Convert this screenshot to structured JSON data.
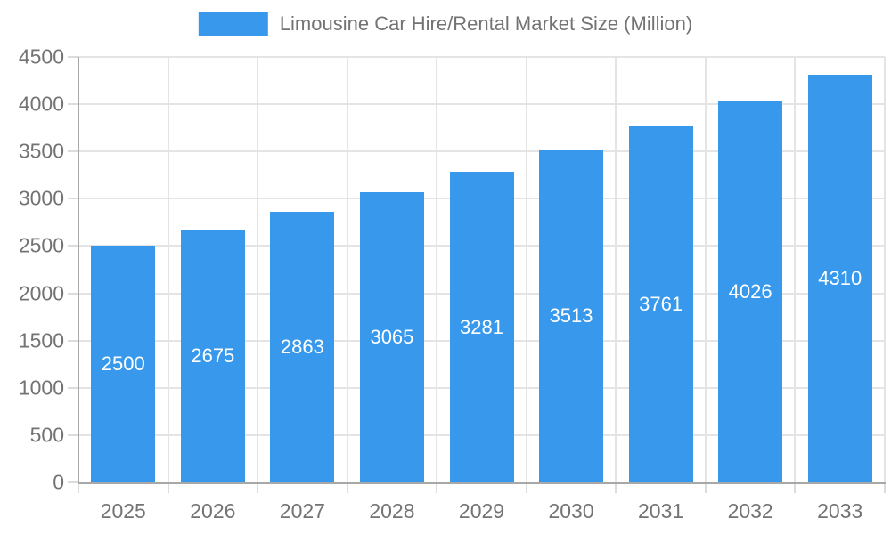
{
  "legend": {
    "label": "Limousine Car Hire/Rental Market Size (Million)"
  },
  "colors": {
    "bar": "#3899EC",
    "value_label": "#FFFFFF",
    "axis_line": "#A8A8A8",
    "grid_line": "#E4E4E4",
    "tick": "#DCDCDC",
    "text": "#737373",
    "background": "#FFFFFF"
  },
  "chart_data": {
    "type": "bar",
    "title": "Limousine Car Hire/Rental Market Size (Million)",
    "categories": [
      "2025",
      "2026",
      "2027",
      "2028",
      "2029",
      "2030",
      "2031",
      "2032",
      "2033"
    ],
    "values": [
      2500,
      2675,
      2863,
      3065,
      3281,
      3513,
      3761,
      4026,
      4310
    ],
    "value_labels": [
      "2500",
      "2675",
      "2863",
      "3065",
      "3281",
      "3513",
      "3761",
      "4026",
      "4310"
    ],
    "yticks": [
      0,
      500,
      1000,
      1500,
      2000,
      2500,
      3000,
      3500,
      4000,
      4500
    ],
    "ylim": [
      0,
      4500
    ],
    "ytick_step": 500,
    "grid": true,
    "legend_position": "top",
    "value_label_position": "center-of-bar",
    "xlabel": "",
    "ylabel": ""
  }
}
